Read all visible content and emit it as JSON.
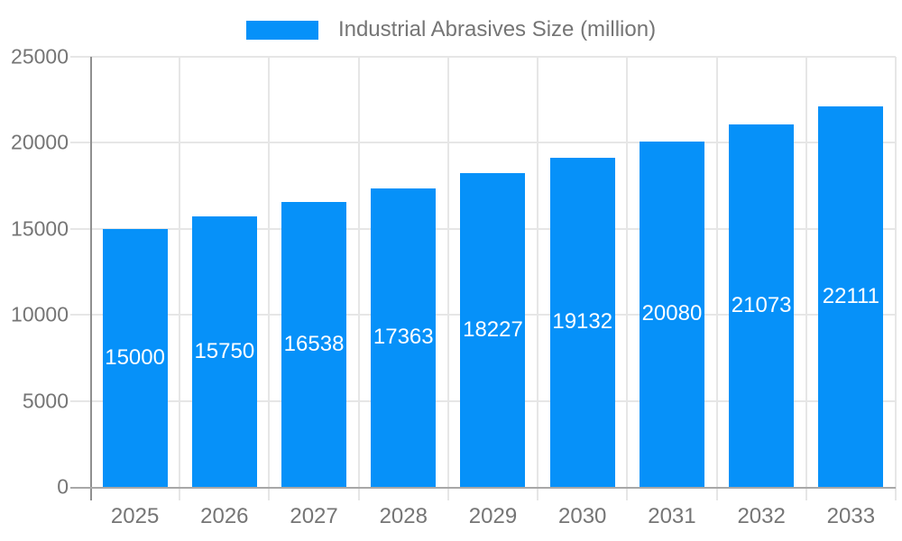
{
  "chart_data": {
    "type": "bar",
    "title": "Industrial Abrasives Size (million)",
    "categories": [
      "2025",
      "2026",
      "2027",
      "2028",
      "2029",
      "2030",
      "2031",
      "2032",
      "2033"
    ],
    "values": [
      15000,
      15750,
      16538,
      17363,
      18227,
      19132,
      20080,
      21073,
      22111
    ],
    "xlabel": "",
    "ylabel": "",
    "ylim": [
      0,
      25000
    ],
    "yticks": [
      0,
      5000,
      10000,
      15000,
      20000,
      25000
    ],
    "grid": true,
    "legend_position": "top",
    "bar_color": "#0691f9",
    "data_label_color": "#ffffff",
    "axis_text_color": "#757575",
    "gridline_color": "#e6e6e6"
  }
}
